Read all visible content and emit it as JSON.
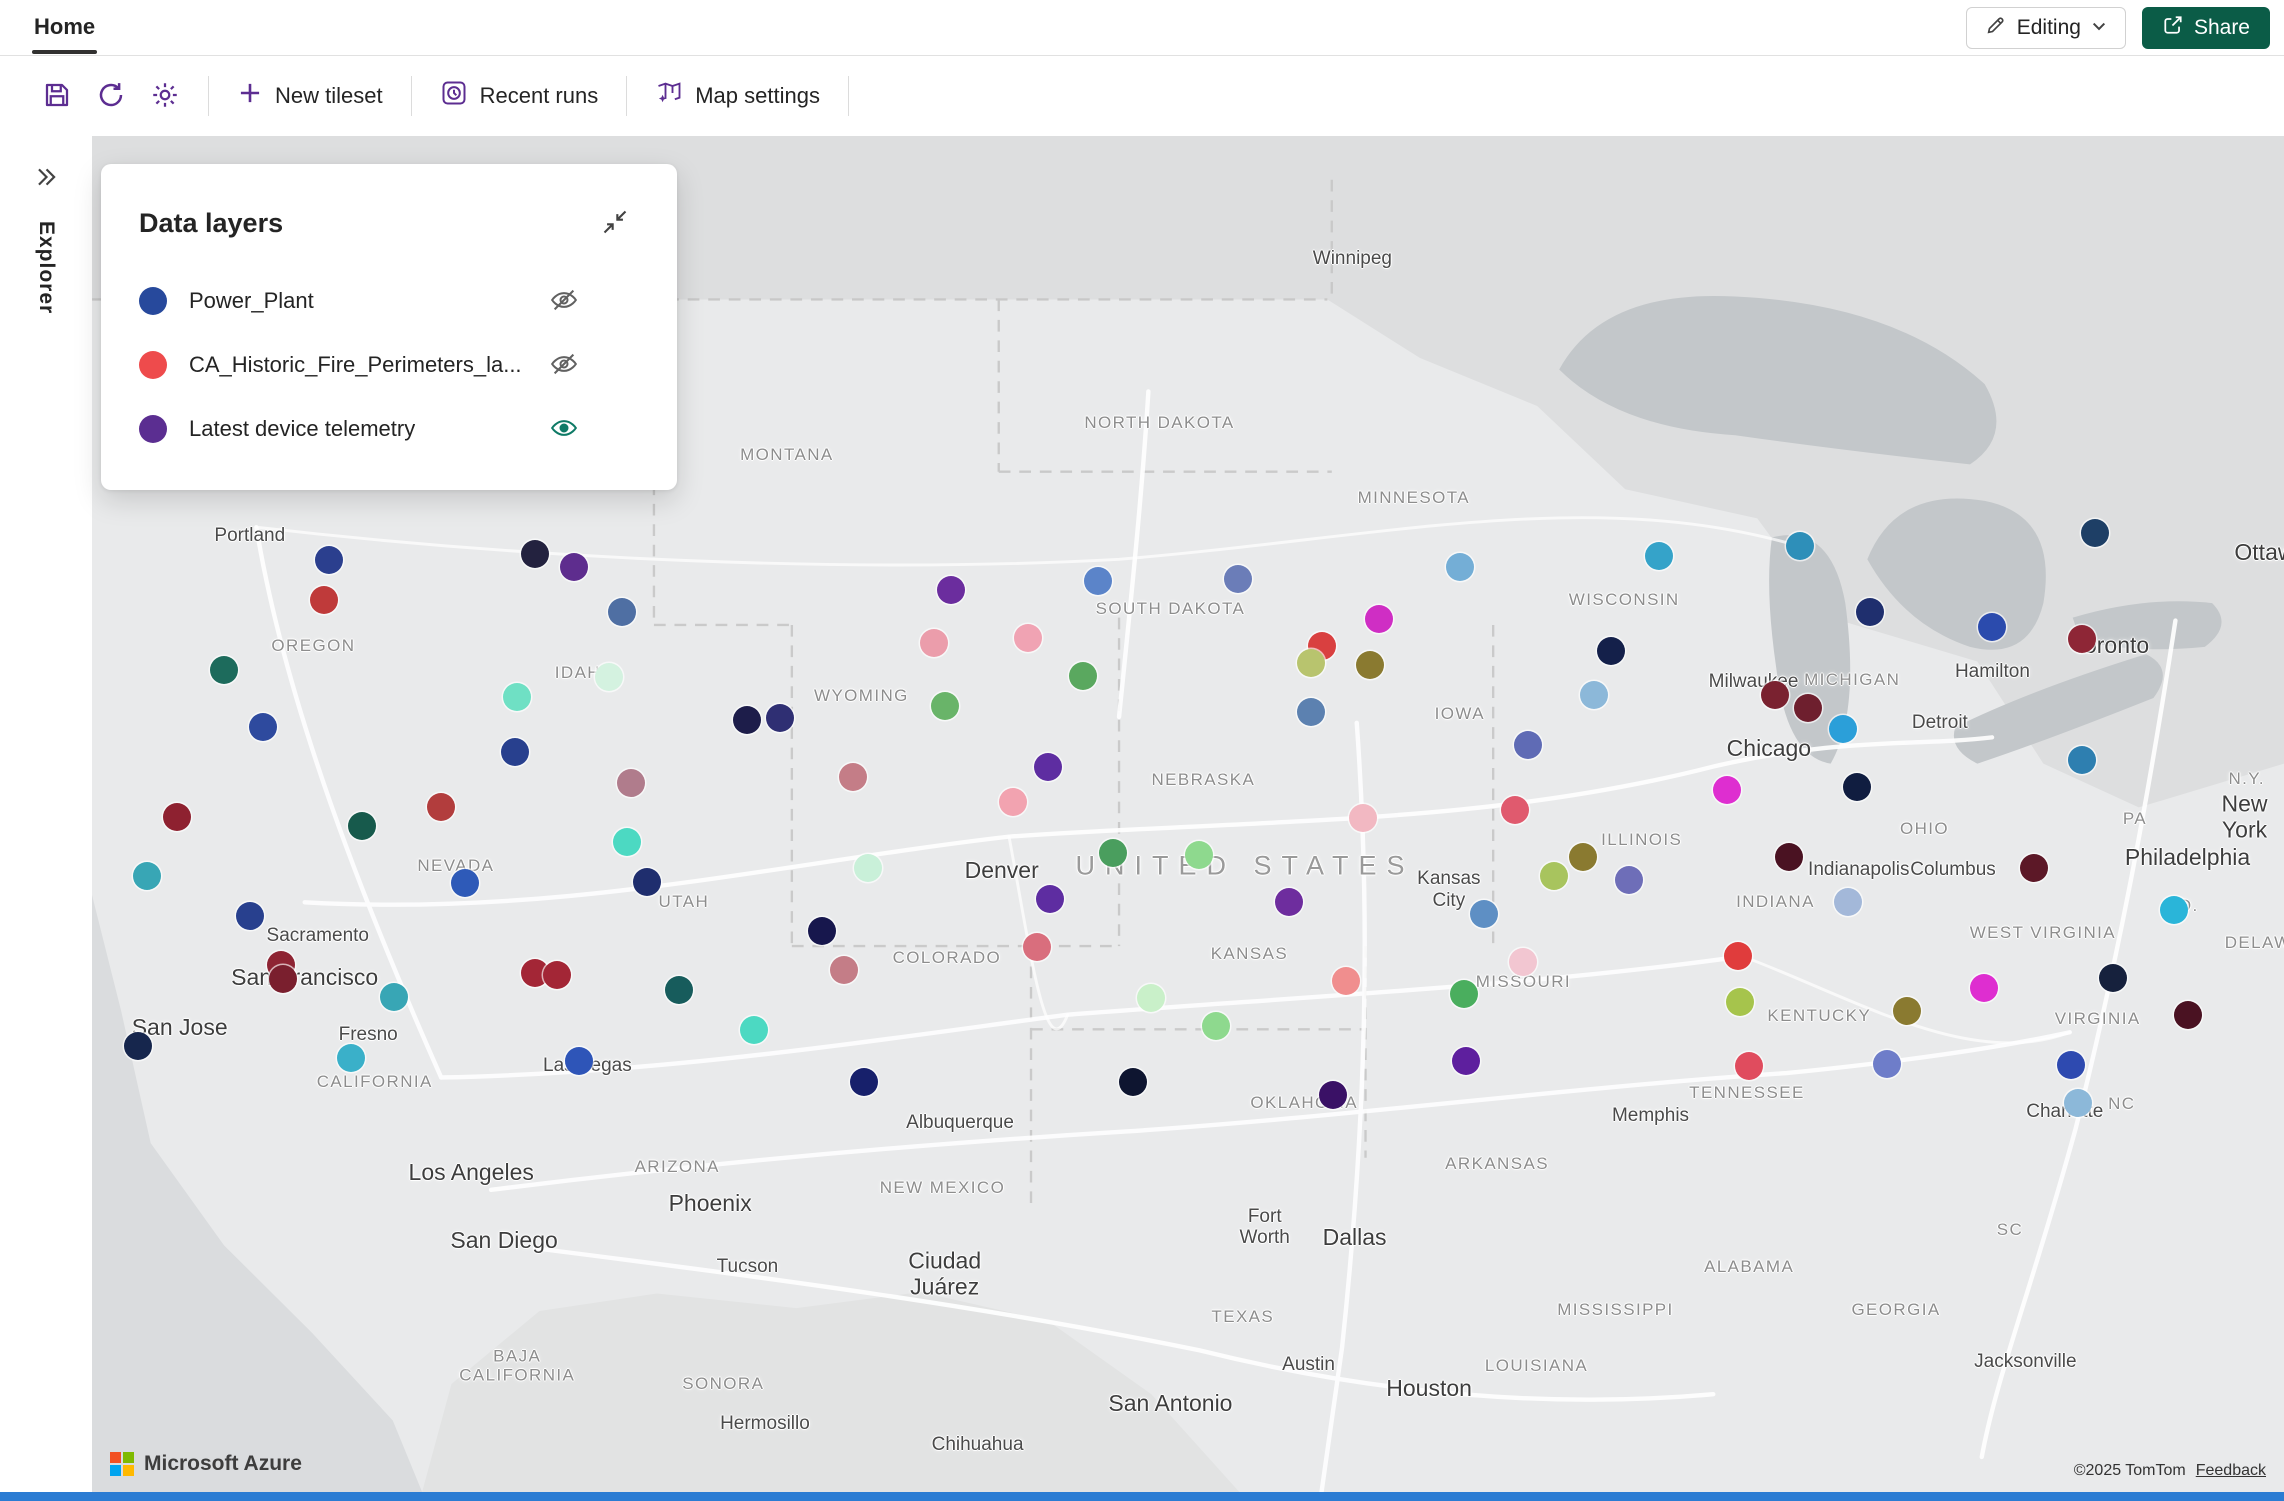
{
  "tab_bar": {
    "home_label": "Home",
    "editing_label": "Editing",
    "share_label": "Share"
  },
  "toolbar": {
    "new_tileset_label": "New tileset",
    "recent_runs_label": "Recent runs",
    "map_settings_label": "Map settings"
  },
  "explorer": {
    "label": "Explorer"
  },
  "data_layers": {
    "title": "Data layers",
    "layers": [
      {
        "name": "Power_Plant",
        "color": "#27499c",
        "visible": false
      },
      {
        "name": "CA_Historic_Fire_Perimeters_la...",
        "color": "#ee4b4c",
        "visible": false
      },
      {
        "name": "Latest device telemetry",
        "color": "#5b2e91",
        "visible": true
      }
    ]
  },
  "colors": {
    "accent_purple": "#5c2d91",
    "share_green": "#0b5c47",
    "bottom_bar_blue": "#2b7cd3",
    "eye_on_teal": "#0e7a66",
    "eye_off_gray": "#616161"
  },
  "map": {
    "attribution": "©2025 TomTom",
    "feedback_label": "Feedback",
    "brand": "Microsoft Azure",
    "labels": [
      [
        "Winnipeg",
        57.5,
        9.1,
        "city"
      ],
      [
        "NORTH DAKOTA",
        48.7,
        21.2,
        "state"
      ],
      [
        "MONTANA",
        31.7,
        23.5,
        "state"
      ],
      [
        "MINNESOTA",
        60.3,
        26.7,
        "state"
      ],
      [
        "SOUTH DAKOTA",
        49.2,
        34.9,
        "state"
      ],
      [
        "WISCONSIN",
        69.9,
        34.2,
        "state"
      ],
      [
        "Milwaukee",
        75.8,
        40.3,
        "city"
      ],
      [
        "MICHIGAN",
        80.3,
        40.1,
        "state"
      ],
      [
        "Toronto",
        92.1,
        37.5,
        "bigcity"
      ],
      [
        "Hamilton",
        86.7,
        39.5,
        "city"
      ],
      [
        "Ottawa",
        99.4,
        30.7,
        "bigcity"
      ],
      [
        "Portland",
        7.2,
        29.5,
        "city"
      ],
      [
        "OREGON",
        10.1,
        37.6,
        "state"
      ],
      [
        "IDAHO",
        22.5,
        39.6,
        "state"
      ],
      [
        "WYOMING",
        35.1,
        41.3,
        "state"
      ],
      [
        "IOWA",
        62.4,
        42.6,
        "state"
      ],
      [
        "Chicago",
        76.5,
        45.1,
        "bigcity"
      ],
      [
        "Detroit",
        84.3,
        43.3,
        "city"
      ],
      [
        "N.Y.",
        98.3,
        47.4,
        "state"
      ],
      [
        "New York",
        98.2,
        50.2,
        "bigcity"
      ],
      [
        "NEBRASKA",
        50.7,
        47.5,
        "state"
      ],
      [
        "ILLINOIS",
        70.7,
        51.9,
        "state"
      ],
      [
        "OHIO",
        83.6,
        51.1,
        "state"
      ],
      [
        "PA",
        93.2,
        50.4,
        "state"
      ],
      [
        "Philadelphia",
        95.6,
        53.2,
        "bigcity"
      ],
      [
        "UNITED STATES",
        52.6,
        53.8,
        "country"
      ],
      [
        "Kansas\nCity",
        61.9,
        55.6,
        "city"
      ],
      [
        "INDIANA",
        76.8,
        56.5,
        "state"
      ],
      [
        "Indianapolis",
        80.6,
        54.1,
        "city"
      ],
      [
        "Columbus",
        84.9,
        54.1,
        "city"
      ],
      [
        "WEST VIRGINIA",
        89.0,
        58.8,
        "state"
      ],
      [
        "MD.",
        95.3,
        56.8,
        "state"
      ],
      [
        "DELAWARE",
        99.7,
        59.5,
        "state"
      ],
      [
        "NEVADA",
        16.6,
        53.8,
        "state"
      ],
      [
        "UTAH",
        27.0,
        56.5,
        "state"
      ],
      [
        "COLORADO",
        39.0,
        60.6,
        "state"
      ],
      [
        "KANSAS",
        52.8,
        60.3,
        "state"
      ],
      [
        "MISSOURI",
        65.3,
        62.4,
        "state"
      ],
      [
        "KENTUCKY",
        78.8,
        64.9,
        "state"
      ],
      [
        "VIRGINIA",
        91.5,
        65.1,
        "state"
      ],
      [
        "Sacramento",
        10.3,
        59.0,
        "city"
      ],
      [
        "San Francisco",
        9.7,
        62.0,
        "bigcity"
      ],
      [
        "San Jose",
        4.0,
        65.7,
        "bigcity"
      ],
      [
        "Fresno",
        12.6,
        66.3,
        "city"
      ],
      [
        "CALIFORNIA",
        12.9,
        69.8,
        "state"
      ],
      [
        "Las Vegas",
        22.6,
        68.6,
        "city"
      ],
      [
        "Los Angeles",
        17.3,
        76.4,
        "bigcity"
      ],
      [
        "San Diego",
        18.8,
        81.4,
        "bigcity"
      ],
      [
        "ARIZONA",
        26.7,
        76.0,
        "state"
      ],
      [
        "Phoenix",
        28.2,
        78.7,
        "bigcity"
      ],
      [
        "Tucson",
        29.9,
        83.4,
        "city"
      ],
      [
        "NEW MEXICO",
        38.8,
        77.6,
        "state"
      ],
      [
        "Albuquerque",
        39.6,
        72.8,
        "city"
      ],
      [
        "Denver",
        41.5,
        54.1,
        "bigcity"
      ],
      [
        "OKLAHOMA",
        55.3,
        71.3,
        "state"
      ],
      [
        "TENNESSEE",
        75.5,
        70.6,
        "state"
      ],
      [
        "Memphis",
        71.1,
        72.3,
        "city"
      ],
      [
        "Charlotte",
        90.0,
        72.0,
        "city"
      ],
      [
        "NC",
        92.6,
        71.4,
        "state"
      ],
      [
        "ARKANSAS",
        64.1,
        75.8,
        "state"
      ],
      [
        "Fort\nWorth",
        53.5,
        80.5,
        "city"
      ],
      [
        "Dallas",
        57.6,
        81.2,
        "bigcity"
      ],
      [
        "TEXAS",
        52.5,
        87.1,
        "state"
      ],
      [
        "Austin",
        55.5,
        90.6,
        "city"
      ],
      [
        "Houston",
        61.0,
        92.3,
        "bigcity"
      ],
      [
        "San Antonio",
        49.2,
        93.4,
        "bigcity"
      ],
      [
        "LOUISIANA",
        65.9,
        90.7,
        "state"
      ],
      [
        "MISSISSIPPI",
        69.5,
        86.6,
        "state"
      ],
      [
        "ALABAMA",
        75.6,
        83.4,
        "state"
      ],
      [
        "GEORGIA",
        82.3,
        86.6,
        "state"
      ],
      [
        "SC",
        87.5,
        80.7,
        "state"
      ],
      [
        "Jacksonville",
        88.2,
        90.4,
        "city"
      ],
      [
        "BAJA\nCALIFORNIA",
        19.4,
        90.7,
        "state"
      ],
      [
        "SONORA",
        28.8,
        92.0,
        "state"
      ],
      [
        "Hermosillo",
        30.7,
        95.0,
        "city"
      ],
      [
        "Chihuahua",
        40.4,
        96.5,
        "city"
      ],
      [
        "Ciudad\nJuárez",
        38.9,
        83.9,
        "bigcity"
      ]
    ],
    "points": [
      [
        91.4,
        29.3,
        "#1e3f66"
      ],
      [
        77.9,
        30.2,
        "#2e8fb9"
      ],
      [
        71.5,
        31.0,
        "#35a3c9"
      ],
      [
        20.2,
        30.8,
        "#23223f"
      ],
      [
        22.0,
        31.8,
        "#5e2d8e"
      ],
      [
        10.8,
        31.3,
        "#2b3f8e"
      ],
      [
        10.6,
        34.2,
        "#bf3a3a"
      ],
      [
        24.2,
        35.1,
        "#4f6fa3"
      ],
      [
        39.2,
        33.5,
        "#6b2d9e"
      ],
      [
        45.9,
        32.8,
        "#5b84c9"
      ],
      [
        52.3,
        32.7,
        "#6b7db8"
      ],
      [
        62.4,
        31.8,
        "#74aed6"
      ],
      [
        81.1,
        35.1,
        "#1f2f6e"
      ],
      [
        86.7,
        36.2,
        "#2b4bad"
      ],
      [
        90.8,
        37.1,
        "#8e2636"
      ],
      [
        58.7,
        35.6,
        "#cf2ec4"
      ],
      [
        56.1,
        37.6,
        "#d94040"
      ],
      [
        55.6,
        38.9,
        "#b8c46e"
      ],
      [
        58.3,
        39.0,
        "#8a7a30"
      ],
      [
        69.3,
        38.0,
        "#14204a"
      ],
      [
        38.4,
        37.4,
        "#eb9dab"
      ],
      [
        42.7,
        37.0,
        "#f0a3b3"
      ],
      [
        45.2,
        39.8,
        "#5aa85f"
      ],
      [
        6.0,
        39.4,
        "#1d6b5c"
      ],
      [
        19.4,
        41.4,
        "#6fe0c4"
      ],
      [
        23.6,
        39.9,
        "#d4f2e0"
      ],
      [
        38.9,
        42.0,
        "#69b469"
      ],
      [
        29.9,
        43.1,
        "#1d1d4a"
      ],
      [
        31.4,
        42.9,
        "#2f2f73"
      ],
      [
        7.8,
        43.6,
        "#2e4a9e"
      ],
      [
        19.3,
        45.4,
        "#28408e"
      ],
      [
        55.6,
        42.5,
        "#5c81b0"
      ],
      [
        68.5,
        41.2,
        "#8cb8d9"
      ],
      [
        76.8,
        41.2,
        "#7a2230"
      ],
      [
        78.3,
        42.2,
        "#6e1f2e"
      ],
      [
        79.9,
        43.7,
        "#2b9fd9"
      ],
      [
        65.5,
        44.9,
        "#5f6bb5"
      ],
      [
        24.6,
        47.7,
        "#b07c8c"
      ],
      [
        34.7,
        47.3,
        "#c47d87"
      ],
      [
        43.6,
        46.5,
        "#5e2da1"
      ],
      [
        74.6,
        48.2,
        "#de2ed0"
      ],
      [
        80.5,
        48.0,
        "#101d40"
      ],
      [
        90.8,
        46.0,
        "#2e7fb0"
      ],
      [
        3.9,
        50.2,
        "#8e2130"
      ],
      [
        15.9,
        49.5,
        "#b23d3d"
      ],
      [
        12.3,
        50.9,
        "#175a4c"
      ],
      [
        42.0,
        49.1,
        "#f2a3b0"
      ],
      [
        58.0,
        50.3,
        "#f2b8c2"
      ],
      [
        64.9,
        49.7,
        "#e05a6e"
      ],
      [
        24.4,
        52.1,
        "#4cd9c2"
      ],
      [
        2.5,
        54.6,
        "#38a6b5"
      ],
      [
        17.0,
        55.1,
        "#2e5ab8"
      ],
      [
        25.3,
        55.0,
        "#1f2e6e"
      ],
      [
        35.4,
        54.0,
        "#c9f0d9"
      ],
      [
        46.6,
        52.9,
        "#4a9e5e"
      ],
      [
        50.5,
        53.0,
        "#8ed98e"
      ],
      [
        68.0,
        53.2,
        "#8a7a30"
      ],
      [
        66.7,
        54.6,
        "#a8c45e"
      ],
      [
        70.1,
        54.9,
        "#6e6eb8"
      ],
      [
        77.4,
        53.2,
        "#4a1222"
      ],
      [
        88.6,
        54.0,
        "#5c1827"
      ],
      [
        7.2,
        57.5,
        "#28408e"
      ],
      [
        33.3,
        58.6,
        "#17174d"
      ],
      [
        43.7,
        56.3,
        "#5e2da1"
      ],
      [
        54.6,
        56.5,
        "#6e2d9e"
      ],
      [
        63.5,
        57.4,
        "#5e8fc4"
      ],
      [
        80.1,
        56.5,
        "#a3b8d9"
      ],
      [
        75.1,
        60.5,
        "#e03c3c"
      ],
      [
        8.6,
        61.1,
        "#8e2433"
      ],
      [
        8.7,
        62.2,
        "#7a1f2e"
      ],
      [
        20.2,
        61.7,
        "#a32636"
      ],
      [
        21.2,
        61.9,
        "#a32636"
      ],
      [
        26.8,
        63.0,
        "#175c5c"
      ],
      [
        34.3,
        61.5,
        "#c47d87"
      ],
      [
        43.1,
        59.8,
        "#d96e7d"
      ],
      [
        57.2,
        62.3,
        "#f08e8e"
      ],
      [
        62.6,
        63.3,
        "#4aae5e"
      ],
      [
        65.3,
        60.9,
        "#f2c6d1"
      ],
      [
        75.2,
        63.9,
        "#a6c44c"
      ],
      [
        82.8,
        64.5,
        "#8a7a30"
      ],
      [
        86.3,
        62.8,
        "#de2ed0"
      ],
      [
        92.2,
        62.1,
        "#16213d"
      ],
      [
        95.6,
        64.8,
        "#4a1222"
      ],
      [
        13.8,
        63.5,
        "#38a6b5"
      ],
      [
        11.8,
        68.0,
        "#3ab0c9"
      ],
      [
        2.1,
        67.1,
        "#16264d"
      ],
      [
        22.2,
        68.2,
        "#2e55b8"
      ],
      [
        30.2,
        65.9,
        "#4cd9c2"
      ],
      [
        48.3,
        63.6,
        "#c9f0c9"
      ],
      [
        51.3,
        65.6,
        "#8ed98e"
      ],
      [
        35.2,
        69.8,
        "#17206b"
      ],
      [
        47.5,
        69.8,
        "#0e1530"
      ],
      [
        62.7,
        68.2,
        "#5e1f9e"
      ],
      [
        56.6,
        70.7,
        "#3a1166"
      ],
      [
        75.6,
        68.6,
        "#e04c5e"
      ],
      [
        81.9,
        68.4,
        "#6e7dc9"
      ],
      [
        90.3,
        68.5,
        "#2e4ab0"
      ],
      [
        90.6,
        71.3,
        "#8cb8d9"
      ],
      [
        95.0,
        57.1,
        "#2ab5d9"
      ]
    ]
  }
}
